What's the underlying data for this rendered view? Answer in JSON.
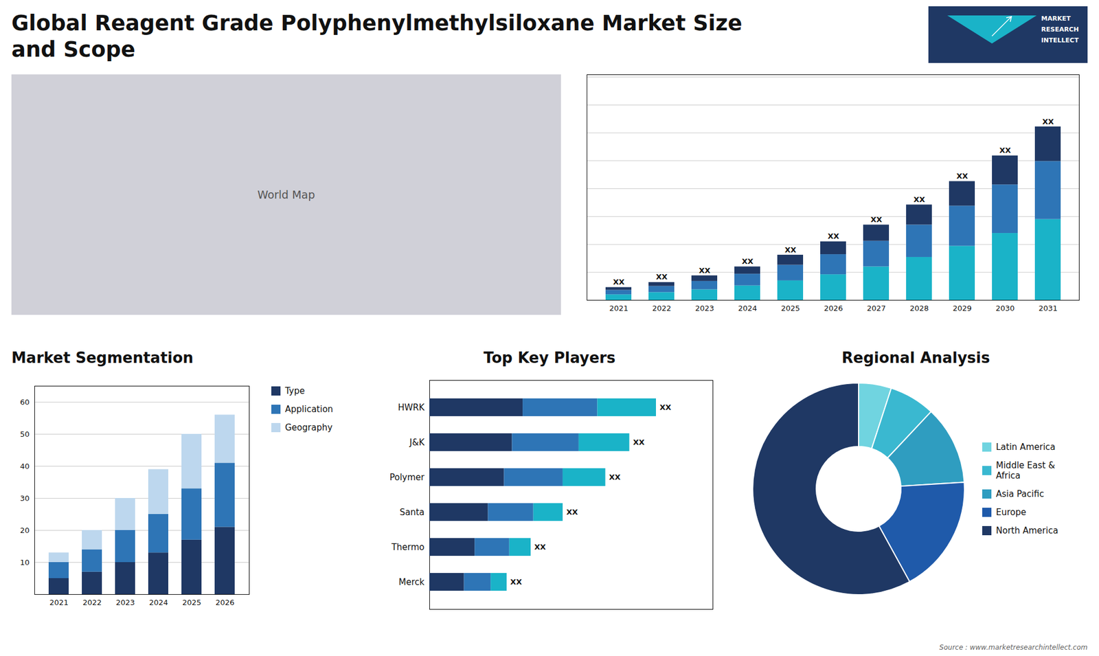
{
  "title": "Global Reagent Grade Polyphenylmethylsiloxane Market Size\nand Scope",
  "caption": "Source : www.marketresearchintellect.com",
  "annotations": [
    "MARKET",
    "RESEARCH",
    "INTELLECT"
  ],
  "chart_data": [
    {
      "type": "map",
      "annotations": [
        "World Map"
      ]
    },
    {
      "type": "bar",
      "stacked": true,
      "categories": [
        "2021",
        "2022",
        "2023",
        "2024",
        "2025",
        "2026",
        "2027",
        "2028",
        "2029",
        "2030",
        "2031"
      ],
      "series": [
        {
          "color": "#1ab3c8",
          "values": [
            1.0,
            1.4,
            1.9,
            2.6,
            3.5,
            4.6,
            6.0,
            7.7,
            9.7,
            12.0,
            14.5
          ]
        },
        {
          "color": "#2e75b6",
          "values": [
            0.8,
            1.1,
            1.5,
            2.1,
            2.8,
            3.6,
            4.6,
            5.8,
            7.2,
            8.7,
            10.4
          ]
        },
        {
          "color": "#1f3864",
          "values": [
            0.5,
            0.7,
            1.0,
            1.3,
            1.8,
            2.3,
            2.9,
            3.6,
            4.4,
            5.2,
            6.2
          ]
        }
      ],
      "ylim": [
        0,
        40.43
      ],
      "yticks": [
        0,
        5,
        10,
        15,
        20,
        25,
        30,
        35,
        40
      ],
      "grid": true,
      "tick_labels": "x",
      "annotations": [
        {
          "x": "2021",
          "text": "XX"
        },
        {
          "x": "2022",
          "text": "XX"
        },
        {
          "x": "2023",
          "text": "XX"
        },
        {
          "x": "2024",
          "text": "XX"
        },
        {
          "x": "2025",
          "text": "XX"
        },
        {
          "x": "2026",
          "text": "XX"
        },
        {
          "x": "2027",
          "text": "XX"
        },
        {
          "x": "2028",
          "text": "XX"
        },
        {
          "x": "2029",
          "text": "XX"
        },
        {
          "x": "2030",
          "text": "XX"
        },
        {
          "x": "2031",
          "text": "XX"
        }
      ]
    },
    {
      "type": "bar",
      "stacked": true,
      "title": "Market Segmentation",
      "categories": [
        "2021",
        "2022",
        "2023",
        "2024",
        "2025",
        "2026"
      ],
      "series": [
        {
          "name": "Type",
          "color": "#1f3864",
          "values": [
            5,
            7,
            10,
            13,
            17,
            21
          ]
        },
        {
          "name": "Application",
          "color": "#2e75b6",
          "values": [
            5,
            7,
            10,
            12,
            16,
            20
          ]
        },
        {
          "name": "Geography",
          "color": "#bdd7ee",
          "values": [
            3,
            6,
            10,
            14,
            17,
            15
          ]
        }
      ],
      "ylim": [
        0,
        65
      ],
      "yticks": [
        10,
        20,
        30,
        40,
        50,
        60
      ],
      "grid": true,
      "legend": "right"
    },
    {
      "type": "bar",
      "orientation": "horizontal",
      "stacked": true,
      "title": "Top Key Players",
      "categories": [
        "HWRK",
        "J&K",
        "Polymer",
        "Santa",
        "Thermo",
        "Merck"
      ],
      "series": [
        {
          "color": "#1f3864",
          "values": [
            35,
            31,
            28,
            22,
            17,
            13
          ]
        },
        {
          "color": "#2e75b6",
          "values": [
            28,
            25,
            22,
            17,
            13,
            10
          ]
        },
        {
          "color": "#1ab3c8",
          "values": [
            22,
            19,
            16,
            11,
            8,
            6
          ]
        }
      ],
      "xlim": [
        0,
        106.25
      ],
      "grid": false,
      "tick_labels": "y",
      "annotations": [
        {
          "y": "HWRK",
          "text": "XX"
        },
        {
          "y": "J&K",
          "text": "XX"
        },
        {
          "y": "Polymer",
          "text": "XX"
        },
        {
          "y": "Santa",
          "text": "XX"
        },
        {
          "y": "Thermo",
          "text": "XX"
        },
        {
          "y": "Merck",
          "text": "XX"
        }
      ]
    },
    {
      "type": "donut",
      "title": "Regional Analysis",
      "categories": [
        "Latin America",
        "Middle East &\nAfrica",
        "Asia Pacific",
        "Europe",
        "North America"
      ],
      "values": [
        5,
        7,
        12,
        18,
        58
      ],
      "colors": [
        "#70d4e0",
        "#3ab8d0",
        "#2f9dc0",
        "#1f5aaa",
        "#1f3864"
      ],
      "legend": "right"
    }
  ]
}
